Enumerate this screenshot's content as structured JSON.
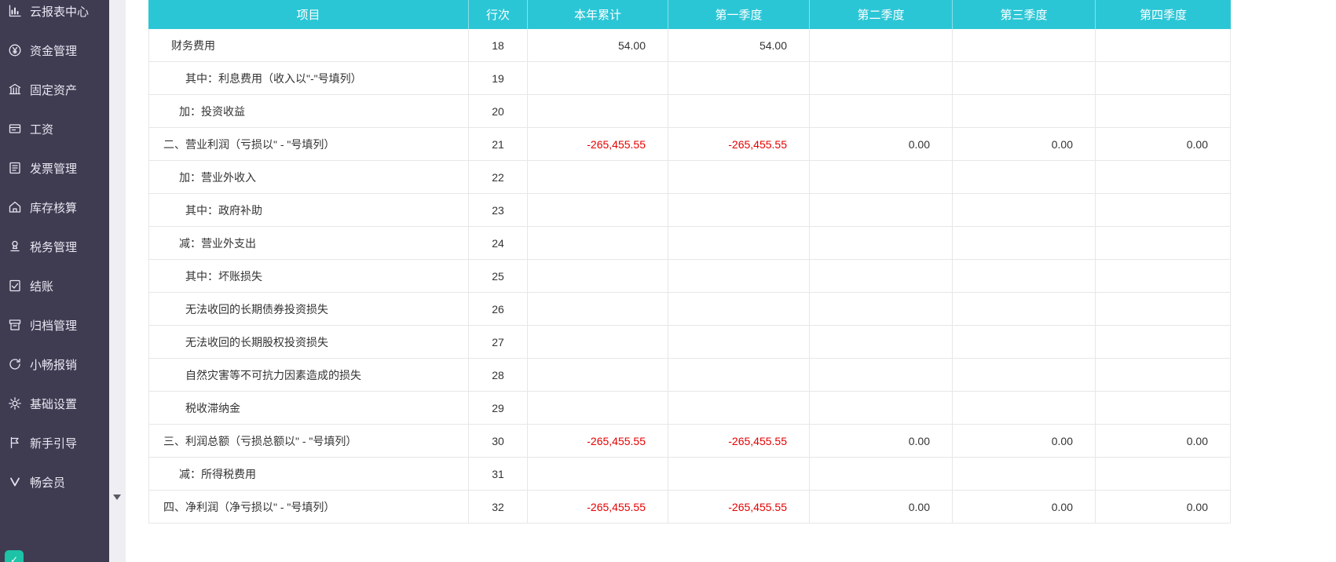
{
  "colors": {
    "header_bg": "#2bc6d6",
    "header_text": "#ffffff",
    "sidebar_bg": "#3f3c52",
    "sidebar_text": "#e9e7f1",
    "negative": "#e60000",
    "scrollbar_bg": "#efeef2",
    "accent_teal": "#1cc3a6"
  },
  "sidebar": {
    "items": [
      {
        "label": "云报表中心",
        "icon": "report-icon"
      },
      {
        "label": "资金管理",
        "icon": "funds-icon"
      },
      {
        "label": "固定资产",
        "icon": "assets-icon"
      },
      {
        "label": "工资",
        "icon": "salary-icon"
      },
      {
        "label": "发票管理",
        "icon": "invoice-icon"
      },
      {
        "label": "库存核算",
        "icon": "inventory-icon"
      },
      {
        "label": "税务管理",
        "icon": "tax-icon"
      },
      {
        "label": "结账",
        "icon": "settle-icon"
      },
      {
        "label": "归档管理",
        "icon": "archive-icon"
      },
      {
        "label": "小畅报销",
        "icon": "reimburse-icon"
      },
      {
        "label": "基础设置",
        "icon": "settings-icon"
      },
      {
        "label": "新手引导",
        "icon": "guide-icon"
      },
      {
        "label": "畅会员",
        "icon": "member-icon"
      }
    ]
  },
  "table": {
    "headers": [
      "项目",
      "行次",
      "本年累计",
      "第一季度",
      "第二季度",
      "第三季度",
      "第四季度"
    ],
    "rows": [
      {
        "item": "财务费用",
        "indent": 2,
        "line": "18",
        "values": [
          "54.00",
          "54.00",
          "",
          "",
          ""
        ]
      },
      {
        "item": "其中：利息费用（收入以\"-\"号填列）",
        "indent": 4,
        "line": "19",
        "values": [
          "",
          "",
          "",
          "",
          ""
        ]
      },
      {
        "item": "加：投资收益",
        "indent": 3,
        "line": "20",
        "values": [
          "",
          "",
          "",
          "",
          ""
        ]
      },
      {
        "item": "二、营业利润（亏损以\" - \"号填列）",
        "indent": 1,
        "line": "21",
        "values": [
          "-265,455.55",
          "-265,455.55",
          "0.00",
          "0.00",
          "0.00"
        ]
      },
      {
        "item": "加：营业外收入",
        "indent": 3,
        "line": "22",
        "values": [
          "",
          "",
          "",
          "",
          ""
        ]
      },
      {
        "item": "其中：政府补助",
        "indent": 4,
        "line": "23",
        "values": [
          "",
          "",
          "",
          "",
          ""
        ]
      },
      {
        "item": "减：营业外支出",
        "indent": 3,
        "line": "24",
        "values": [
          "",
          "",
          "",
          "",
          ""
        ]
      },
      {
        "item": "其中：坏账损失",
        "indent": 4,
        "line": "25",
        "values": [
          "",
          "",
          "",
          "",
          ""
        ]
      },
      {
        "item": "无法收回的长期债券投资损失",
        "indent": 4,
        "line": "26",
        "values": [
          "",
          "",
          "",
          "",
          ""
        ]
      },
      {
        "item": "无法收回的长期股权投资损失",
        "indent": 4,
        "line": "27",
        "values": [
          "",
          "",
          "",
          "",
          ""
        ]
      },
      {
        "item": "自然灾害等不可抗力因素造成的损失",
        "indent": 4,
        "line": "28",
        "values": [
          "",
          "",
          "",
          "",
          ""
        ]
      },
      {
        "item": "税收滞纳金",
        "indent": 4,
        "line": "29",
        "values": [
          "",
          "",
          "",
          "",
          ""
        ]
      },
      {
        "item": "三、利润总额（亏损总额以\" - \"号填列）",
        "indent": 1,
        "line": "30",
        "values": [
          "-265,455.55",
          "-265,455.55",
          "0.00",
          "0.00",
          "0.00"
        ]
      },
      {
        "item": "减：所得税费用",
        "indent": 3,
        "line": "31",
        "values": [
          "",
          "",
          "",
          "",
          ""
        ]
      },
      {
        "item": "四、净利润（净亏损以\" - \"号填列）",
        "indent": 1,
        "line": "32",
        "values": [
          "-265,455.55",
          "-265,455.55",
          "0.00",
          "0.00",
          "0.00"
        ]
      }
    ]
  }
}
